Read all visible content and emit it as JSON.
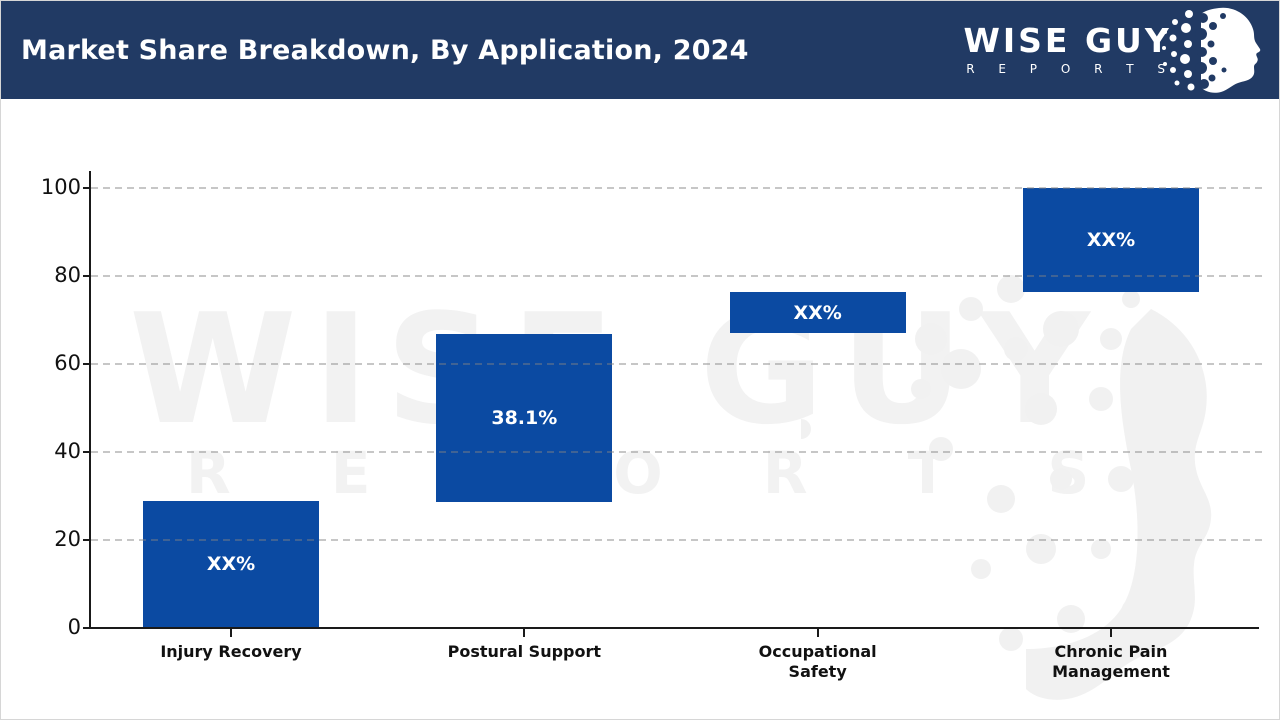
{
  "header": {
    "title": "Market Share Breakdown, By Application, 2024",
    "bg_color": "#213a64",
    "logo": {
      "line1": "WISE GUY",
      "line2": "R E P O R T S"
    }
  },
  "watermark": {
    "line1": "WISE GUY",
    "line2": "R E P O R T S"
  },
  "chart_data": {
    "type": "bar",
    "subtype": "waterfall",
    "title": "Market Share Breakdown, By Application, 2024",
    "categories": [
      "Injury Recovery",
      "Postural Support",
      "Occupational\nSafety",
      "Chronic Pain\nManagement"
    ],
    "segments": [
      {
        "category": "Injury Recovery",
        "start": 0,
        "end": 28.9,
        "label": "XX%"
      },
      {
        "category": "Postural Support",
        "start": 28.7,
        "end": 66.8,
        "label": "38.1%"
      },
      {
        "category": "Occupational Safety",
        "start": 67.0,
        "end": 76.4,
        "label": "XX%"
      },
      {
        "category": "Chronic Pain Management",
        "start": 76.4,
        "end": 100.0,
        "label": "XX%"
      }
    ],
    "values": [
      28.9,
      38.1,
      9.4,
      23.6
    ],
    "value_labels": [
      "XX%",
      "38.1%",
      "XX%",
      "XX%"
    ],
    "yticks": [
      0,
      20,
      40,
      60,
      80,
      100
    ],
    "ylim": [
      0,
      104
    ],
    "xlabel": "",
    "ylabel": "",
    "grid": "horizontal-dashed, drawn over bars",
    "legend": "none",
    "bar_color": "#0b4aa2",
    "bar_label_color": "#ffffff",
    "axis_color": "#1a1a1a",
    "gridline_color": "#c9c9c9"
  }
}
